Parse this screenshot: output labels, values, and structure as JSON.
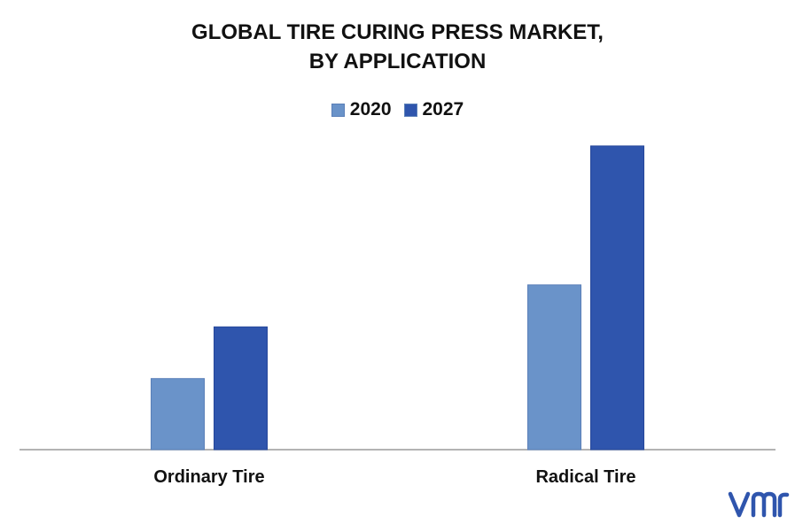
{
  "chart_data": {
    "type": "bar",
    "title_lines": [
      "GLOBAL TIRE CURING PRESS MARKET,",
      "BY APPLICATION"
    ],
    "categories": [
      "Ordinary Tire",
      "Radical Tire"
    ],
    "series": [
      {
        "name": "2020",
        "values": [
          22,
          51
        ],
        "color": "#6a93c9"
      },
      {
        "name": "2027",
        "values": [
          38,
          94
        ],
        "color": "#2f55ad"
      }
    ],
    "ylim": [
      0,
      100
    ],
    "grid": false,
    "legend_position": "top-center",
    "xlabel": "",
    "ylabel": ""
  },
  "logo": {
    "text": "vmr",
    "color": "#2f55ad"
  }
}
